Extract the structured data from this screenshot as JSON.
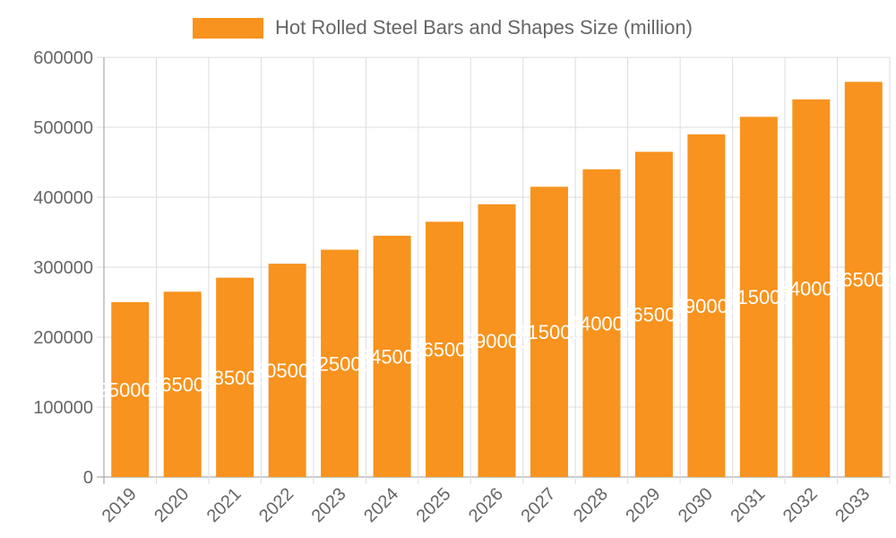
{
  "chart_data": {
    "type": "bar",
    "title": "",
    "xlabel": "",
    "ylabel": "",
    "categories": [
      "2019",
      "2020",
      "2021",
      "2022",
      "2023",
      "2024",
      "2025",
      "2026",
      "2027",
      "2028",
      "2029",
      "2030",
      "2031",
      "2032",
      "2033"
    ],
    "series": [
      {
        "name": "Hot Rolled Steel Bars and Shapes Size (million)",
        "values": [
          250000,
          265000,
          285000,
          305000,
          325000,
          345000,
          365000,
          390000,
          415000,
          440000,
          465000,
          490000,
          515000,
          540000,
          565000
        ],
        "color": "#F7931E"
      }
    ],
    "ylim": [
      0,
      600000
    ],
    "yticks": [
      0,
      100000,
      200000,
      300000,
      400000,
      500000,
      600000
    ],
    "grid": true,
    "legend": "top",
    "data_labels": true,
    "data_label_color": "#ffffff"
  }
}
